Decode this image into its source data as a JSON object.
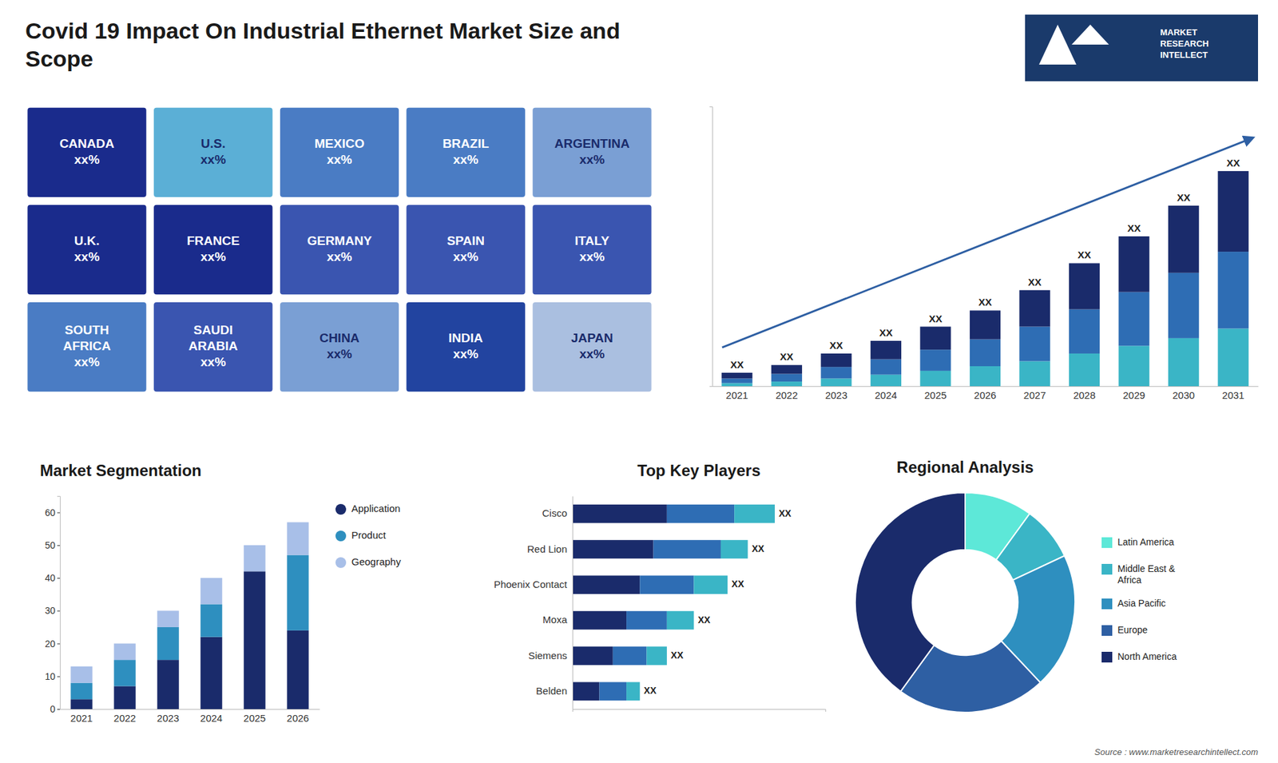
{
  "title": "Covid 19 Impact On Industrial Ethernet Market Size and\nScope",
  "annotations": [
    "MARKET\nRESEARCH\nINTELLECT",
    "Source : www.marketresearchintellect.com"
  ],
  "chart_data": [
    {
      "type": "map",
      "categories": [
        "CANADA",
        "U.S.",
        "MEXICO",
        "BRAZIL",
        "ARGENTINA",
        "U.K.",
        "FRANCE",
        "GERMANY",
        "SPAIN",
        "ITALY",
        "SOUTH\nAFRICA",
        "SAUDI\nARABIA",
        "CHINA",
        "INDIA",
        "JAPAN"
      ],
      "annotations": [
        "xx%",
        "xx%",
        "xx%",
        "xx%",
        "xx%",
        "xx%",
        "xx%",
        "xx%",
        "xx%",
        "xx%",
        "xx%",
        "xx%",
        "xx%",
        "xx%",
        "xx%"
      ],
      "colors": [
        "#1a2b8c",
        "#5bafd6",
        "#4a7cc4",
        "#4a7cc4",
        "#7a9fd4",
        "#1a2b8c",
        "#1a2b8c",
        "#3a55b0",
        "#3a55b0",
        "#3a55b0",
        "#4a7cc4",
        "#3a55b0",
        "#7a9fd4",
        "#2244a0",
        "#aabfe0"
      ]
    },
    {
      "type": "bar",
      "stacked": true,
      "categories": [
        "2021",
        "2022",
        "2023",
        "2024",
        "2025",
        "2026",
        "2027",
        "2028",
        "2029",
        "2030",
        "2031"
      ],
      "series": [
        {
          "color": "#3ab5c6",
          "values": [
            0.8,
            1.2,
            2.0,
            3.0,
            4.0,
            5.2,
            6.5,
            8.5,
            10.5,
            12.5,
            15.0
          ]
        },
        {
          "color": "#2e6db4",
          "values": [
            1.2,
            2.0,
            3.0,
            4.0,
            5.5,
            7.0,
            9.0,
            11.5,
            14.0,
            17.0,
            20.0
          ]
        },
        {
          "color": "#1a2b6b",
          "values": [
            1.5,
            2.3,
            3.5,
            4.8,
            6.0,
            7.5,
            9.5,
            12.0,
            14.5,
            17.5,
            21.0
          ]
        }
      ],
      "annotations": [
        "XX",
        "XX",
        "XX",
        "XX",
        "XX",
        "XX",
        "XX",
        "XX",
        "XX",
        "XX",
        "XX"
      ],
      "ylim": [
        0,
        72.8
      ],
      "tick_labels": "x",
      "grid": false
    },
    {
      "type": "bar",
      "stacked": true,
      "title": "Market Segmentation",
      "categories": [
        "2021",
        "2022",
        "2023",
        "2024",
        "2025",
        "2026"
      ],
      "series": [
        {
          "name": "Application",
          "color": "#1a2b6b",
          "values": [
            3,
            7,
            15,
            22,
            42,
            24
          ]
        },
        {
          "name": "Product",
          "color": "#2e8fbf",
          "values": [
            5,
            8,
            10,
            10,
            0,
            23
          ]
        },
        {
          "name": "Geography",
          "color": "#a8bfe8",
          "values": [
            5,
            5,
            5,
            8,
            8,
            10
          ]
        }
      ],
      "ylim": [
        0,
        65
      ],
      "yticks": [
        0,
        10,
        20,
        30,
        40,
        50,
        60
      ],
      "legend": "right",
      "grid": false
    },
    {
      "type": "bar",
      "stacked": true,
      "orientation": "horizontal",
      "title": "Top Key Players",
      "categories": [
        "Cisco",
        "Red Lion",
        "Phoenix Contact",
        "Moxa",
        "Siemens",
        "Belden"
      ],
      "series": [
        {
          "color": "#1a2b6b",
          "values": [
            7,
            6,
            5,
            4,
            3,
            2
          ]
        },
        {
          "color": "#2e6db4",
          "values": [
            5,
            5,
            4,
            3,
            2.5,
            2
          ]
        },
        {
          "color": "#3ab5c6",
          "values": [
            3,
            2,
            2.5,
            2,
            1.5,
            1
          ]
        }
      ],
      "annotations": [
        "XX",
        "XX",
        "XX",
        "XX",
        "XX",
        "XX"
      ],
      "xlim": [
        0,
        18.75
      ],
      "tick_labels": "y",
      "grid": false
    },
    {
      "type": "donut",
      "title": "Regional Analysis",
      "categories": [
        "Latin America",
        "Middle East &\nAfrica",
        "Asia Pacific",
        "Europe",
        "North America"
      ],
      "values": [
        10,
        8,
        20,
        22,
        40
      ],
      "colors": [
        "#5de8d8",
        "#3ab5c6",
        "#2e8fbf",
        "#2e5fa3",
        "#1a2b6b"
      ],
      "legend": "right"
    }
  ]
}
